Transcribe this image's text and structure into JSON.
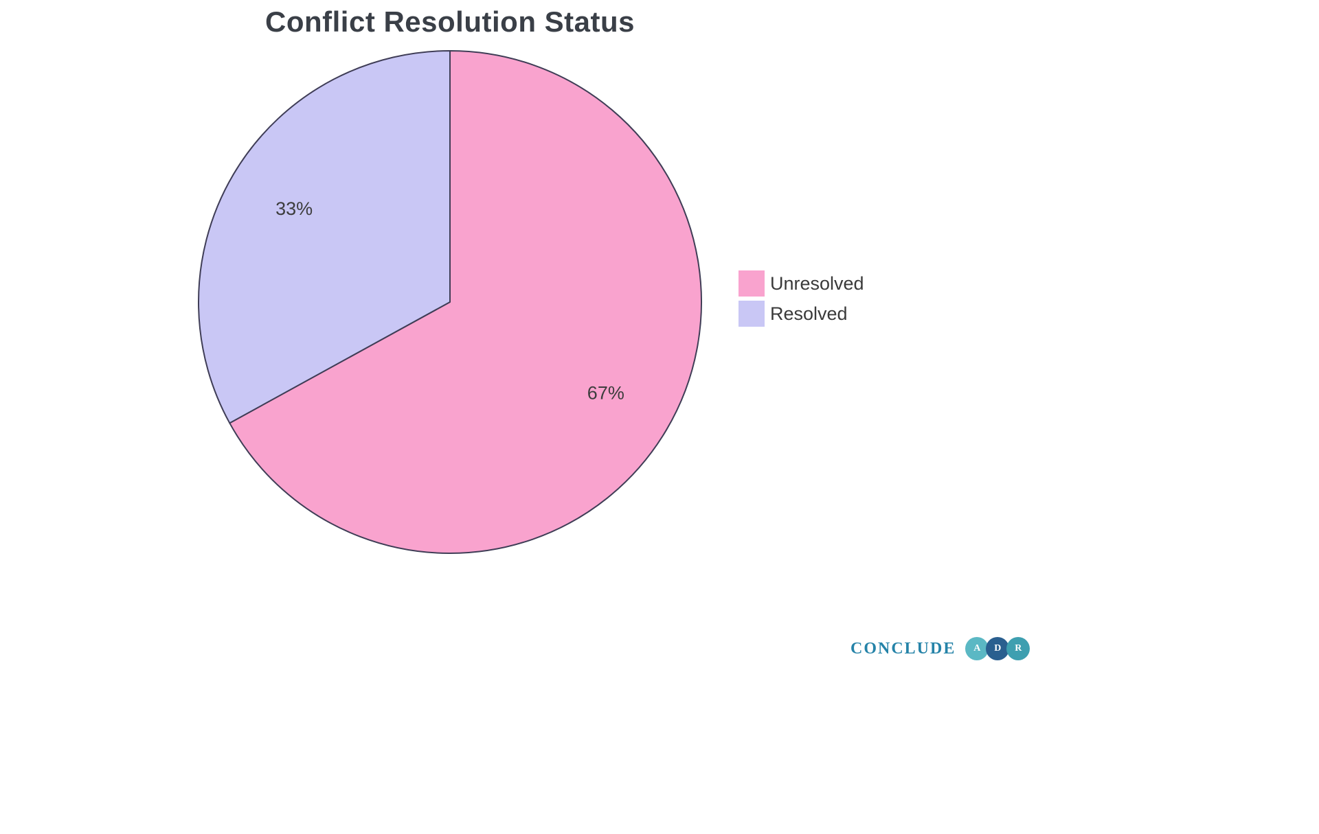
{
  "chart_data": {
    "type": "pie",
    "title": "Conflict Resolution Status",
    "slices": [
      {
        "label": "Unresolved",
        "value": 67,
        "pct_label": "67%",
        "color": "#F9A3CE"
      },
      {
        "label": "Resolved",
        "value": 33,
        "pct_label": "33%",
        "color": "#C9C7F5"
      }
    ],
    "start_angle_deg": 0,
    "direction": "clockwise",
    "stroke_color": "#3F3D56",
    "stroke_width": 2,
    "legend_position": "right",
    "legend": [
      "Unresolved",
      "Resolved"
    ]
  },
  "branding": {
    "wordmark": "CONCLUDE",
    "wordmark_color": "#2583A8",
    "badges": [
      "A",
      "D",
      "R"
    ],
    "badge_colors": [
      "#5BB8C4",
      "#2A5F8F",
      "#3E9FB0"
    ]
  }
}
